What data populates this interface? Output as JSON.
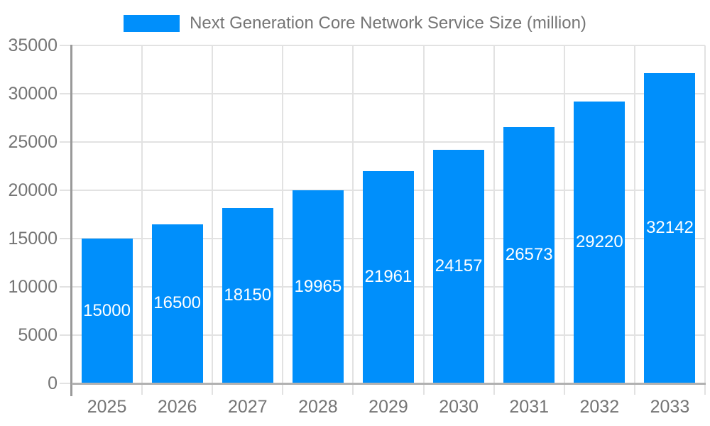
{
  "legend": {
    "label": "Next Generation Core Network Service Size (million)"
  },
  "chart_data": {
    "type": "bar",
    "title": "Next Generation Core Network Service Size (million)",
    "categories": [
      "2025",
      "2026",
      "2027",
      "2028",
      "2029",
      "2030",
      "2031",
      "2032",
      "2033"
    ],
    "series": [
      {
        "name": "Next Generation Core Network Service Size (million)",
        "values": [
          15000,
          16500,
          18150,
          19965,
          21961,
          24157,
          26573,
          29220,
          32142
        ]
      }
    ],
    "bar_value_labels": [
      "15000",
      "16500",
      "18150",
      "19965",
      "21961",
      "24157",
      "26573",
      "29220",
      "32142"
    ],
    "xlabel": "",
    "ylabel": "",
    "ylim": [
      0,
      35000
    ],
    "ytick_step": 5000,
    "y_tick_labels": [
      "0",
      "5000",
      "10000",
      "15000",
      "20000",
      "25000",
      "30000",
      "35000"
    ],
    "grid": true,
    "legend_position": "top"
  },
  "colors": {
    "bar": "#008FFB",
    "bar_label": "#ffffff",
    "grid_line": "#e2e2e2",
    "x_axis_line": "#b1b1b1",
    "y_axis_line": "#999999",
    "axis_text": "#757575",
    "legend_text": "#757575",
    "background": "#ffffff"
  }
}
